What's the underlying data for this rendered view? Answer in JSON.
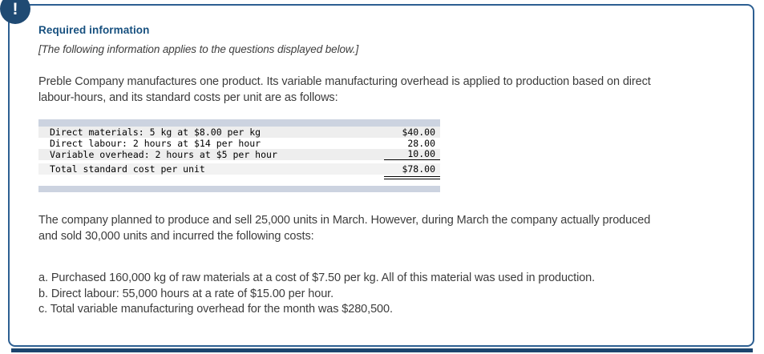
{
  "alert": {
    "icon_glyph": "!"
  },
  "header": {
    "title": "Required information",
    "note": "[The following information applies to the questions displayed below.]"
  },
  "intro": {
    "lines": [
      "Preble Company manufactures one product. Its variable manufacturing overhead is applied to production based on direct",
      "labour-hours, and its standard costs per unit are as follows:"
    ]
  },
  "standard_cost_table": {
    "rows": [
      {
        "label": "Direct materials: 5 kg at $8.00 per kg",
        "amount": "$40.00"
      },
      {
        "label": "Direct labour: 2 hours at $14 per hour",
        "amount": "28.00"
      },
      {
        "label": "Variable overhead: 2 hours at $5 per hour",
        "amount": "10.00"
      }
    ],
    "total": {
      "label": "Total standard cost per unit",
      "amount": "$78.00"
    }
  },
  "body": {
    "lines": [
      "The company planned to produce and sell 25,000 units in March. However, during March the company actually produced",
      "and sold 30,000 units and incurred the following costs:"
    ]
  },
  "cost_items": [
    "a. Purchased 160,000 kg of raw materials at a cost of $7.50 per kg. All of this material was used in production.",
    "b. Direct labour: 55,000 hours at a rate of $15.00 per hour.",
    "c. Total variable manufacturing overhead for the month was $280,500."
  ],
  "colors": {
    "box_border": "#2d5f92",
    "heading_blue": "#17507f",
    "badge_navy": "#1f4a73",
    "table_bar": "#ccd3e0",
    "row_alt": "#eeeeee",
    "bottom_bar": "#1c456e"
  }
}
